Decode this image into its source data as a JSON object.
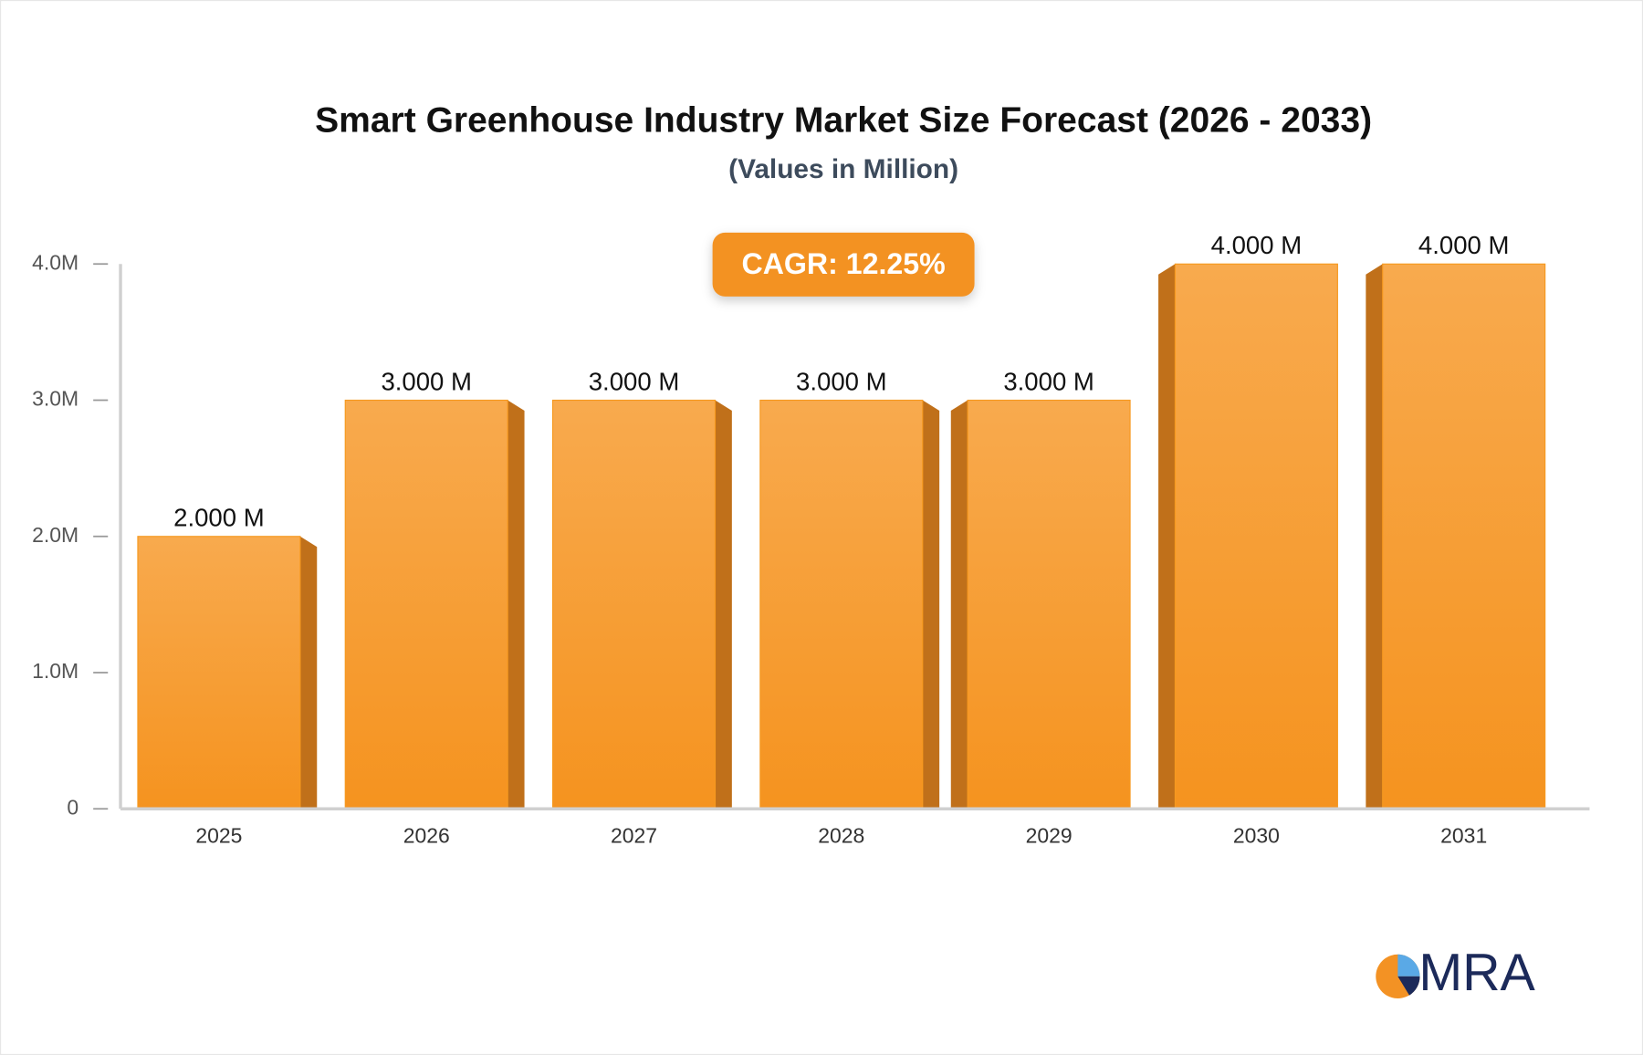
{
  "chart_data": {
    "type": "bar",
    "title": "Smart Greenhouse Industry Market Size Forecast (2026 - 2033)",
    "subtitle": "(Values in Million)",
    "annotation": "CAGR: 12.25%",
    "categories": [
      "2025",
      "2026",
      "2027",
      "2028",
      "2029",
      "2030",
      "2031"
    ],
    "values": [
      2,
      3,
      3,
      3,
      3,
      4,
      4
    ],
    "value_labels": [
      "2.000 M",
      "3.000 M",
      "3.000 M",
      "3.000 M",
      "3.000 M",
      "4.000 M",
      "4.000 M"
    ],
    "color": "#f6991f",
    "ylim": [
      0,
      4
    ],
    "yticks": [
      0,
      {
        "value": 1,
        "label": "1.0M"
      },
      {
        "value": 2,
        "label": "2.0M"
      },
      {
        "value": 3,
        "label": "3.0M"
      },
      {
        "value": 4,
        "label": "4.0M"
      }
    ],
    "grid": false
  },
  "logo": "MRA"
}
